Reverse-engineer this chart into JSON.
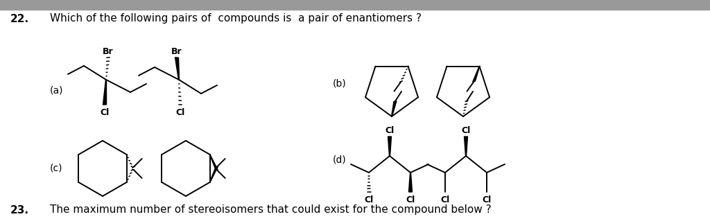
{
  "bg_color": "#ffffff",
  "text_color": "#000000",
  "header_color": "#999999",
  "q22_num": "22.",
  "q22_text": "Which of the following pairs of  compounds is  a pair of enantiomers ?",
  "q23_num": "23.",
  "q23_text": "The maximum number of stereoisomers that could exist for the compound below ?",
  "label_a": "(a)",
  "label_b": "(b)",
  "label_c": "(c)",
  "label_d": "(d)"
}
